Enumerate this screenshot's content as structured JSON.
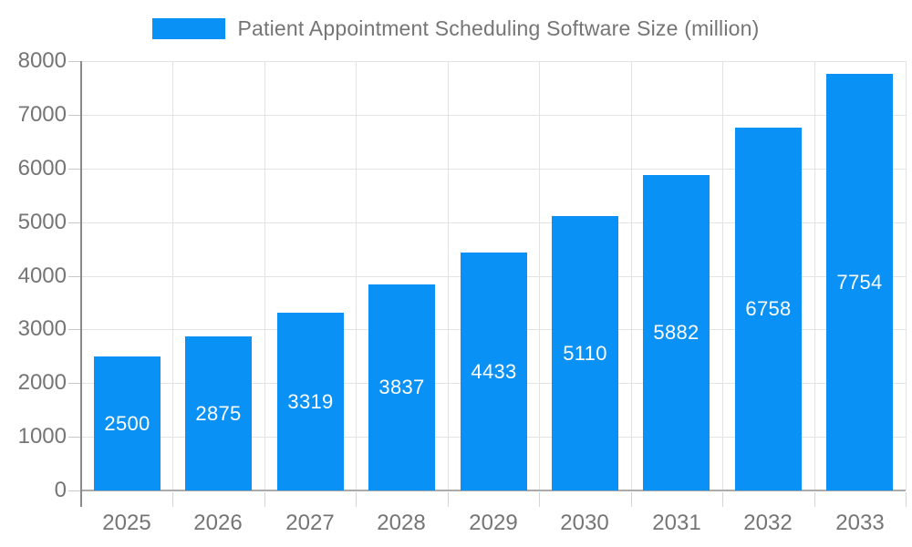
{
  "legend": {
    "label": "Patient Appointment Scheduling Software Size (million)",
    "swatch_color": "#0991F5"
  },
  "chart_data": {
    "type": "bar",
    "title": "Patient Appointment Scheduling Software Size (million)",
    "categories": [
      "2025",
      "2026",
      "2027",
      "2028",
      "2029",
      "2030",
      "2031",
      "2032",
      "2033"
    ],
    "values": [
      2500,
      2875,
      3319,
      3837,
      4433,
      5110,
      5882,
      6758,
      7754
    ],
    "xlabel": "",
    "ylabel": "",
    "ylim": [
      0,
      8000
    ],
    "ytick_step": 1000,
    "ytick_labels": [
      "0",
      "1000",
      "2000",
      "3000",
      "4000",
      "5000",
      "6000",
      "7000",
      "8000"
    ],
    "grid": true,
    "legend_position": "top",
    "bar_color": "#0991F5",
    "bar_label_color": "#ffffff",
    "axis_text_color": "#757575",
    "gridline_color": "#E3E3E3"
  }
}
